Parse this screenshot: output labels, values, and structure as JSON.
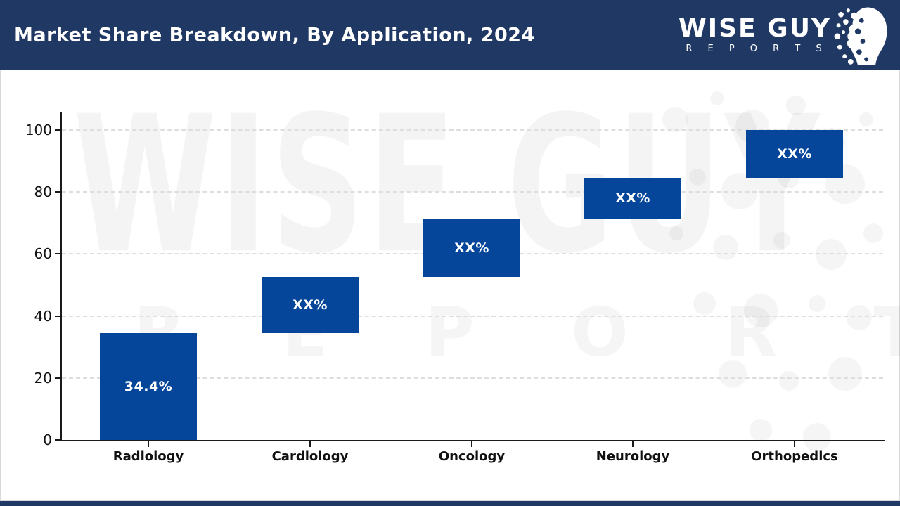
{
  "header": {
    "title": "Market Share Breakdown, By Application, 2024",
    "bg_color": "#1f3864",
    "logo": {
      "line1": "WISE GUY",
      "line2": "R E P O R T S"
    }
  },
  "watermark": {
    "line1": "WISE GUY",
    "line2": "R E P O R T S"
  },
  "chart_data": {
    "type": "bar",
    "subtype": "waterfall-floating-bars",
    "title": "Market Share Breakdown, By Application, 2024",
    "xlabel": "",
    "ylabel": "",
    "categories": [
      "Radiology",
      "Cardiology",
      "Oncology",
      "Neurology",
      "Orthopedics"
    ],
    "segments": [
      {
        "category": "Radiology",
        "start": 0,
        "end": 34.4,
        "label": "34.4%"
      },
      {
        "category": "Cardiology",
        "start": 34.4,
        "end": 52.5,
        "label": "XX%"
      },
      {
        "category": "Oncology",
        "start": 52.5,
        "end": 71.5,
        "label": "XX%"
      },
      {
        "category": "Neurology",
        "start": 71.5,
        "end": 84.5,
        "label": "XX%"
      },
      {
        "category": "Orthopedics",
        "start": 84.5,
        "end": 100,
        "label": "XX%"
      }
    ],
    "y_ticks": [
      0,
      20,
      40,
      60,
      80,
      100
    ],
    "ylim": [
      0,
      106
    ],
    "grid": "horizontal-dashed",
    "legend": "none",
    "bar_color": "#05459a",
    "bar_label_color": "#ffffff",
    "axis_color": "#1a1a1a",
    "grid_color": "#dedede"
  }
}
